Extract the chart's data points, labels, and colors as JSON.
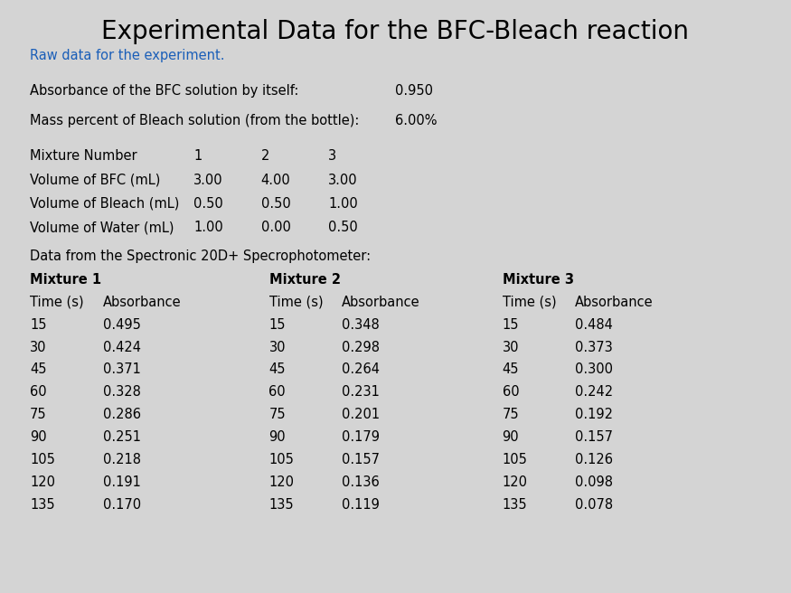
{
  "title": "Experimental Data for the BFC-Bleach reaction",
  "subtitle": "Raw data for the experiment.",
  "bfc_absorbance_label": "Absorbance of the BFC solution by itself:",
  "bfc_absorbance_value": "0.950",
  "bleach_label": "Mass percent of Bleach solution (from the bottle):",
  "bleach_value": "6.00%",
  "mixture_table_headers": [
    "Mixture Number",
    "1",
    "2",
    "3"
  ],
  "mixture_rows": [
    [
      "Volume of BFC (mL)",
      "3.00",
      "4.00",
      "3.00"
    ],
    [
      "Volume of Bleach (mL)",
      "0.50",
      "0.50",
      "1.00"
    ],
    [
      "Volume of Water (mL)",
      "1.00",
      "0.00",
      "0.50"
    ]
  ],
  "spectronic_label": "Data from the Spectronic 20D+ Specrophotometer:",
  "mixture1_header": "Mixture 1",
  "mixture2_header": "Mixture 2",
  "mixture3_header": "Mixture 3",
  "col_headers": [
    "Time (s)",
    "Absorbance"
  ],
  "mixture1_data": [
    [
      15,
      0.495
    ],
    [
      30,
      0.424
    ],
    [
      45,
      0.371
    ],
    [
      60,
      0.328
    ],
    [
      75,
      0.286
    ],
    [
      90,
      0.251
    ],
    [
      105,
      0.218
    ],
    [
      120,
      0.191
    ],
    [
      135,
      0.17
    ]
  ],
  "mixture2_data": [
    [
      15,
      0.348
    ],
    [
      30,
      0.298
    ],
    [
      45,
      0.264
    ],
    [
      60,
      0.231
    ],
    [
      75,
      0.201
    ],
    [
      90,
      0.179
    ],
    [
      105,
      0.157
    ],
    [
      120,
      0.136
    ],
    [
      135,
      0.119
    ]
  ],
  "mixture3_data": [
    [
      15,
      0.484
    ],
    [
      30,
      0.373
    ],
    [
      45,
      0.3
    ],
    [
      60,
      0.242
    ],
    [
      75,
      0.192
    ],
    [
      90,
      0.157
    ],
    [
      105,
      0.126
    ],
    [
      120,
      0.098
    ],
    [
      135,
      0.078
    ]
  ],
  "background_color": "#d4d4d4",
  "title_fontsize": 20,
  "subtitle_color": "#1a5eb8",
  "body_fontsize": 10.5
}
